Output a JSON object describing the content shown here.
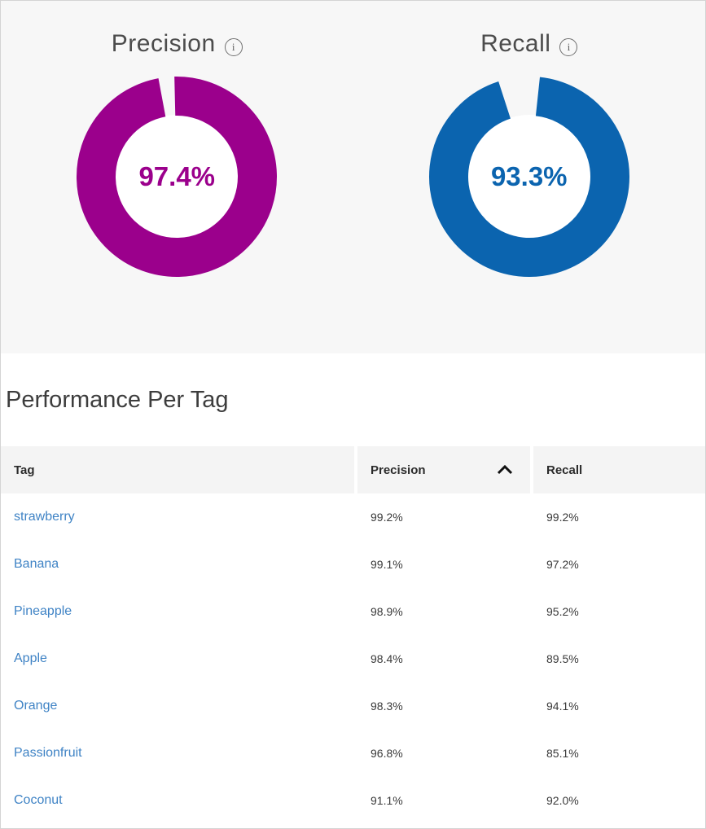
{
  "icons": {
    "info": "i",
    "sort_ascending": "^"
  },
  "colors": {
    "panel_bg": "#f7f7f7",
    "header_bg": "#f4f4f4",
    "link": "#3f83c5",
    "precision_ring": "#9b008c",
    "recall_ring": "#0b64af"
  },
  "chart_data": [
    {
      "type": "pie",
      "subtype": "donut",
      "title": "Precision",
      "center_label": "97.4%",
      "values": [
        97.4,
        2.6
      ],
      "labels": [
        "precision",
        "remainder"
      ],
      "ring_color": "#9b008c",
      "gap_position": "top"
    },
    {
      "type": "pie",
      "subtype": "donut",
      "title": "Recall",
      "center_label": "93.3%",
      "values": [
        93.3,
        6.7
      ],
      "labels": [
        "recall",
        "remainder"
      ],
      "ring_color": "#0b64af",
      "gap_position": "top"
    },
    {
      "type": "table",
      "title": "Performance Per Tag",
      "columns": [
        "Tag",
        "Precision",
        "Recall"
      ],
      "sort": {
        "column": "Precision",
        "direction": "ascending"
      },
      "rows": [
        [
          "strawberry",
          "99.2%",
          "99.2%"
        ],
        [
          "Banana",
          "99.1%",
          "97.2%"
        ],
        [
          "Pineapple",
          "98.9%",
          "95.2%"
        ],
        [
          "Apple",
          "98.4%",
          "89.5%"
        ],
        [
          "Orange",
          "98.3%",
          "94.1%"
        ],
        [
          "Passionfruit",
          "96.8%",
          "85.1%"
        ],
        [
          "Coconut",
          "91.1%",
          "92.0%"
        ]
      ]
    }
  ]
}
